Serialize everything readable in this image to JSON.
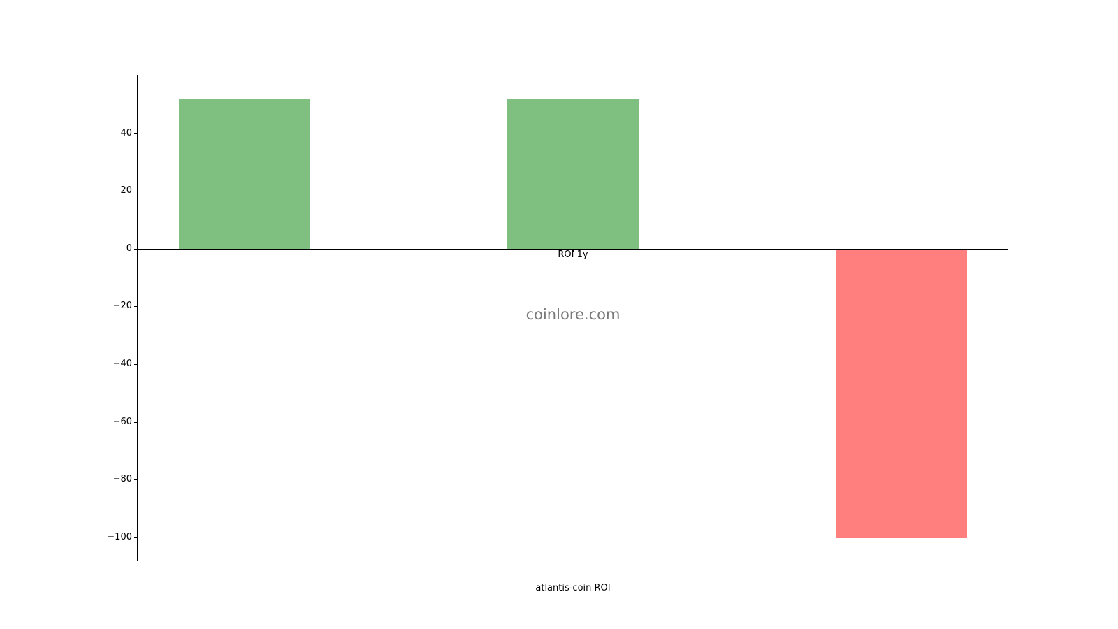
{
  "watermark": {
    "text": "coinlore.com",
    "color": "#7a7a7a"
  },
  "chart_data": {
    "type": "bar",
    "categories": [
      "",
      "ROI 1y",
      ""
    ],
    "values": [
      52,
      52,
      -100
    ],
    "bar_colors": [
      "#7fbf7f",
      "#7fbf7f",
      "#ff7f7f"
    ],
    "positive_color": "#7fbf7f",
    "negative_color": "#ff7f7f",
    "title": "",
    "xlabel": "atlantis-coin ROI",
    "ylabel": "",
    "yticks": [
      40,
      20,
      0,
      -20,
      -40,
      -60,
      -80,
      -100
    ],
    "ylim": [
      -108,
      60
    ],
    "grid": false,
    "legend": null,
    "axis_color": "#000000",
    "zero_line": true
  }
}
